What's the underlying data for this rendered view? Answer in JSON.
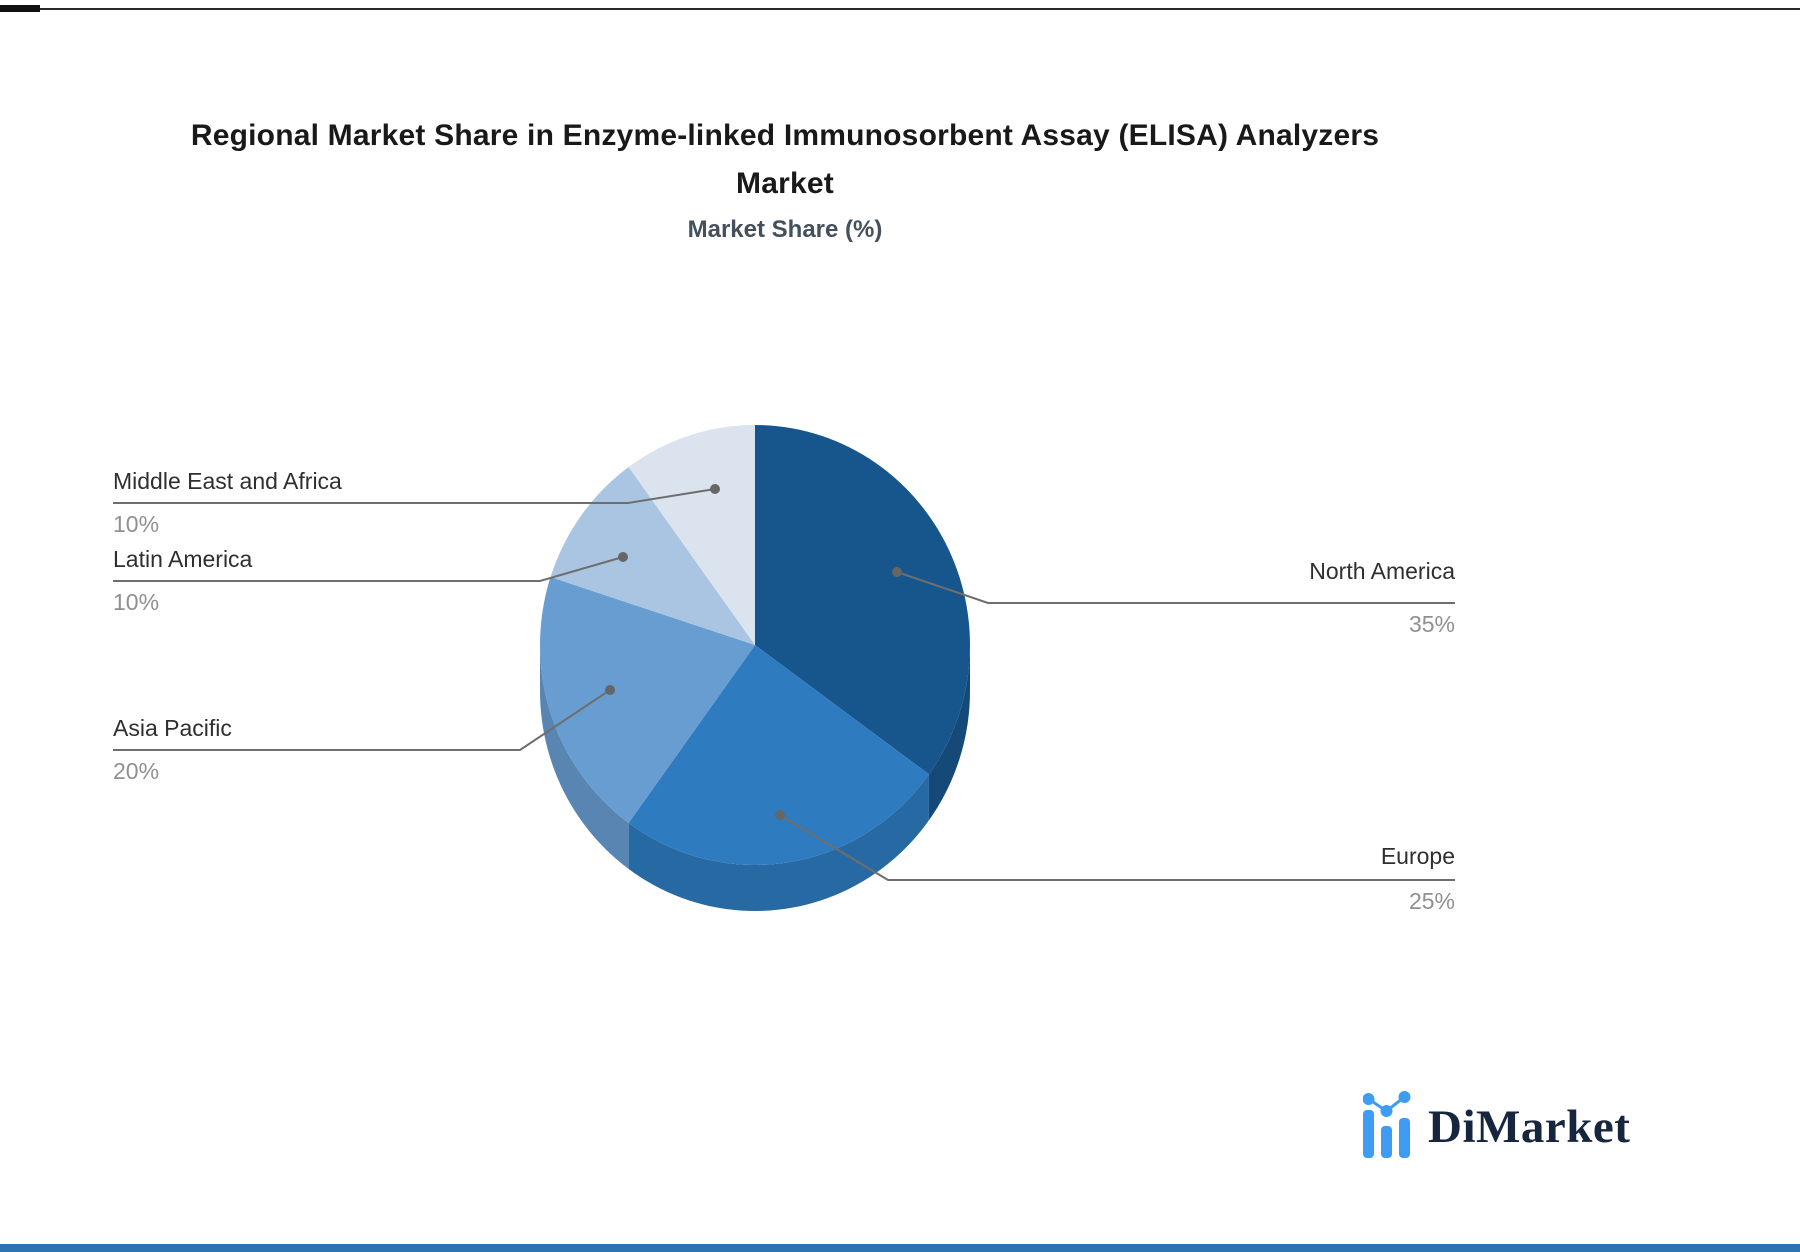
{
  "page": {
    "background": "#ffffff",
    "bottom_accent_color": "#2e74b3"
  },
  "chart_data": {
    "type": "pie",
    "style": "3d-pie",
    "title": "Regional Market Share in Enzyme-linked Immunosorbent Assay (ELISA) Analyzers Market",
    "subtitle": "Market Share (%)",
    "unit": "%",
    "start_angle_deg": 90,
    "direction": "clockwise",
    "legend_position": "none",
    "labels_show_percent": true,
    "categories": [
      "North America",
      "Europe",
      "Asia Pacific",
      "Latin America",
      "Middle East and Africa"
    ],
    "values": [
      35,
      25,
      20,
      10,
      10
    ],
    "slices": [
      {
        "label": "North America",
        "value": 35,
        "pct_label": "35%",
        "color": "#17568d",
        "label_side": "right"
      },
      {
        "label": "Europe",
        "value": 25,
        "pct_label": "25%",
        "color": "#2e7bc0",
        "label_side": "right"
      },
      {
        "label": "Asia Pacific",
        "value": 20,
        "pct_label": "20%",
        "color": "#689dd1",
        "label_side": "left"
      },
      {
        "label": "Latin America",
        "value": 10,
        "pct_label": "10%",
        "color": "#a9c5e1",
        "label_side": "left"
      },
      {
        "label": "Middle East and Africa",
        "value": 10,
        "pct_label": "10%",
        "color": "#dbe3ef",
        "label_side": "left"
      }
    ],
    "connector_color": "#6e6e6e",
    "label_name_color": "#2f2f2f",
    "label_value_color": "#909090"
  },
  "branding": {
    "logo_text": "DiMarket",
    "logo_icon": "bar-chart-with-trendline-icon",
    "logo_icon_color": "#3e9df3",
    "logo_text_color": "#16263f"
  }
}
